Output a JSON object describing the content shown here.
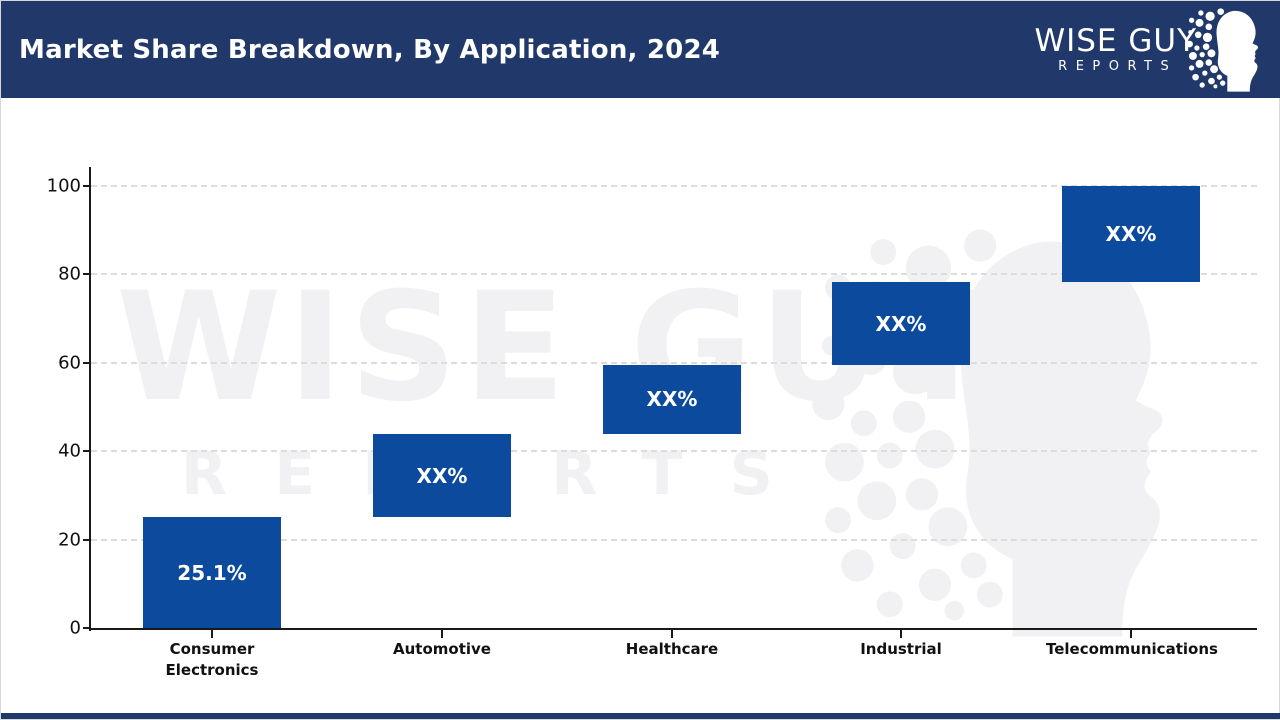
{
  "header": {
    "title": "Market Share Breakdown, By Application, 2024",
    "logo": {
      "line1": "WISE GUY",
      "line2": "REPORTS"
    }
  },
  "watermark": {
    "line1": "WISE GUY",
    "line2": "REPORTS"
  },
  "colors": {
    "header_bg": "#21396a",
    "bar": "#0c4a9e",
    "grid": "#dcdcdc",
    "axis": "#1a1a1a",
    "bar_label_text": "#ffffff",
    "watermark": "#f1f1f3"
  },
  "chart_data": {
    "type": "bar",
    "subtype": "waterfall",
    "title": "Market Share Breakdown, By Application, 2024",
    "categories": [
      "Consumer Electronics",
      "Automotive",
      "Healthcare",
      "Industrial",
      "Telecommunications"
    ],
    "segments": [
      {
        "category": "Consumer Electronics",
        "start": 0,
        "end": 25.1,
        "label": "25.1%"
      },
      {
        "category": "Automotive",
        "start": 25.1,
        "end": 43.9,
        "label": "XX%"
      },
      {
        "category": "Healthcare",
        "start": 43.9,
        "end": 59.5,
        "label": "XX%"
      },
      {
        "category": "Industrial",
        "start": 59.5,
        "end": 78.2,
        "label": "XX%"
      },
      {
        "category": "Telecommunications",
        "start": 78.2,
        "end": 100,
        "label": "XX%"
      }
    ],
    "y_ticks": [
      0,
      20,
      40,
      60,
      80,
      100
    ],
    "ylim": [
      0,
      105
    ],
    "xlabel": "",
    "ylabel": "",
    "legend": "none",
    "grid": "horizontal-dashed"
  }
}
